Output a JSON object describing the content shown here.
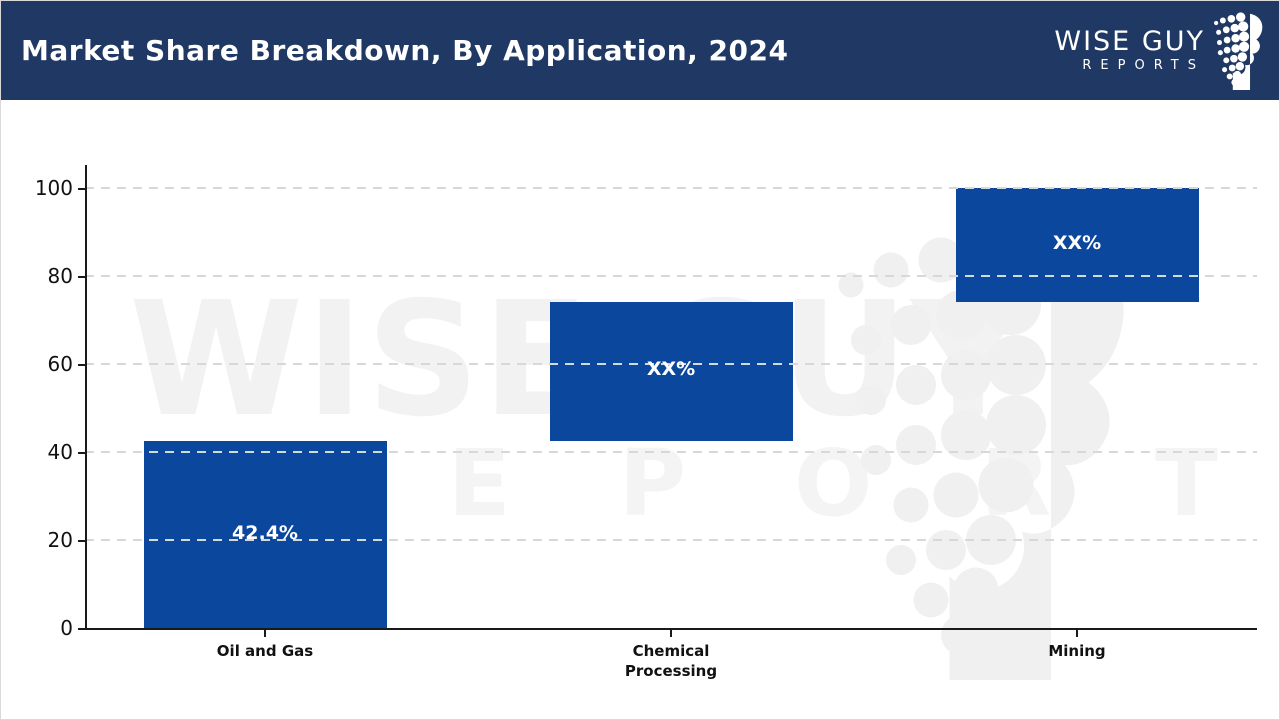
{
  "header": {
    "title": "Market Share Breakdown, By Application, 2024",
    "logo": {
      "line1": "WISE GUY",
      "line2": "REPORTS"
    }
  },
  "watermark": {
    "line1": "WISE GUY",
    "line2": "REPORTS"
  },
  "chart_data": {
    "type": "bar",
    "subtype": "floating segment bars (waterfall-style market share)",
    "title": "Market Share Breakdown, By Application, 2024",
    "categories": [
      "Oil and Gas",
      "Chemical Processing",
      "Mining"
    ],
    "segments": [
      {
        "category": "Oil and Gas",
        "start": 0,
        "end": 42.4,
        "label": "42.4%"
      },
      {
        "category": "Chemical Processing",
        "start": 42.4,
        "end": 74.2,
        "label": "XX%"
      },
      {
        "category": "Mining",
        "start": 74.2,
        "end": 100,
        "label": "XX%"
      }
    ],
    "ylim": [
      0,
      100
    ],
    "yticks": [
      0,
      20,
      40,
      60,
      80,
      100
    ],
    "grid": "horizontal dashed",
    "legend": "none",
    "bar_color": "#0B479C"
  },
  "colors": {
    "header_bg": "#203864",
    "bar": "#0B479C",
    "gridline": "#d8d8d8",
    "axis": "#1a1a1a",
    "watermark": "#f2f2f2",
    "page_border": "#d9d9d9"
  }
}
